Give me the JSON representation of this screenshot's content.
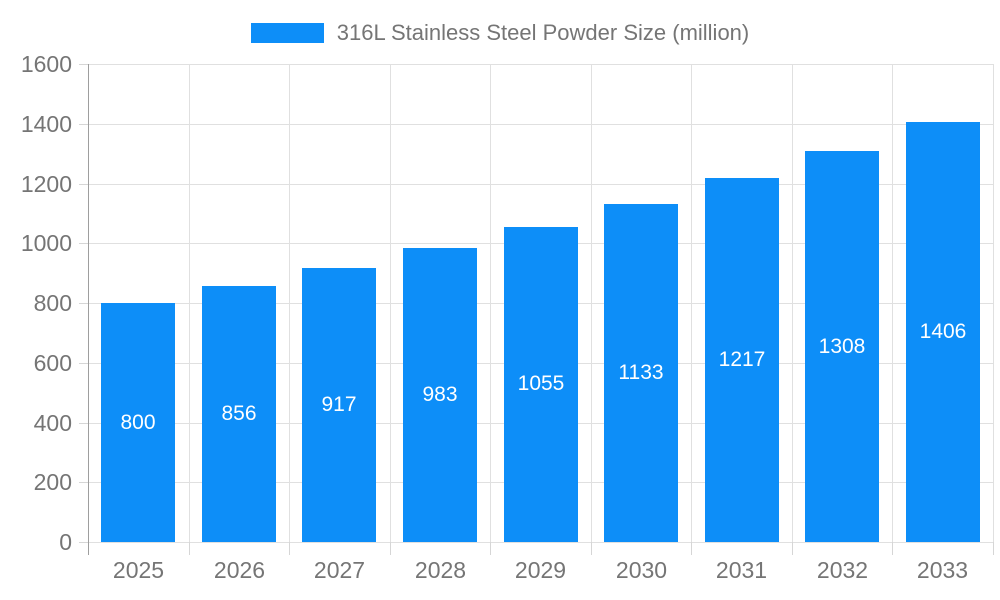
{
  "legend": {
    "label": "316L Stainless Steel Powder Size (million)"
  },
  "colors": {
    "bar": "#0d8ef8",
    "grid": "#e0e0e0",
    "axis_line": "#9e9e9e",
    "tick": "#d6d6d6",
    "axis_text": "#757575",
    "bar_label_text": "#ffffff",
    "background": "#ffffff"
  },
  "chart_data": {
    "type": "bar",
    "title": "316L Stainless Steel Powder Size (million)",
    "categories": [
      "2025",
      "2026",
      "2027",
      "2028",
      "2029",
      "2030",
      "2031",
      "2032",
      "2033"
    ],
    "values": [
      800,
      856,
      917,
      983,
      1055,
      1133,
      1217,
      1308,
      1406
    ],
    "xlabel": "",
    "ylabel": "",
    "ylim": [
      0,
      1600
    ],
    "ytick_step": 200,
    "grid": true,
    "legend_position": "top",
    "bar_value_labels": "inside-middle"
  }
}
